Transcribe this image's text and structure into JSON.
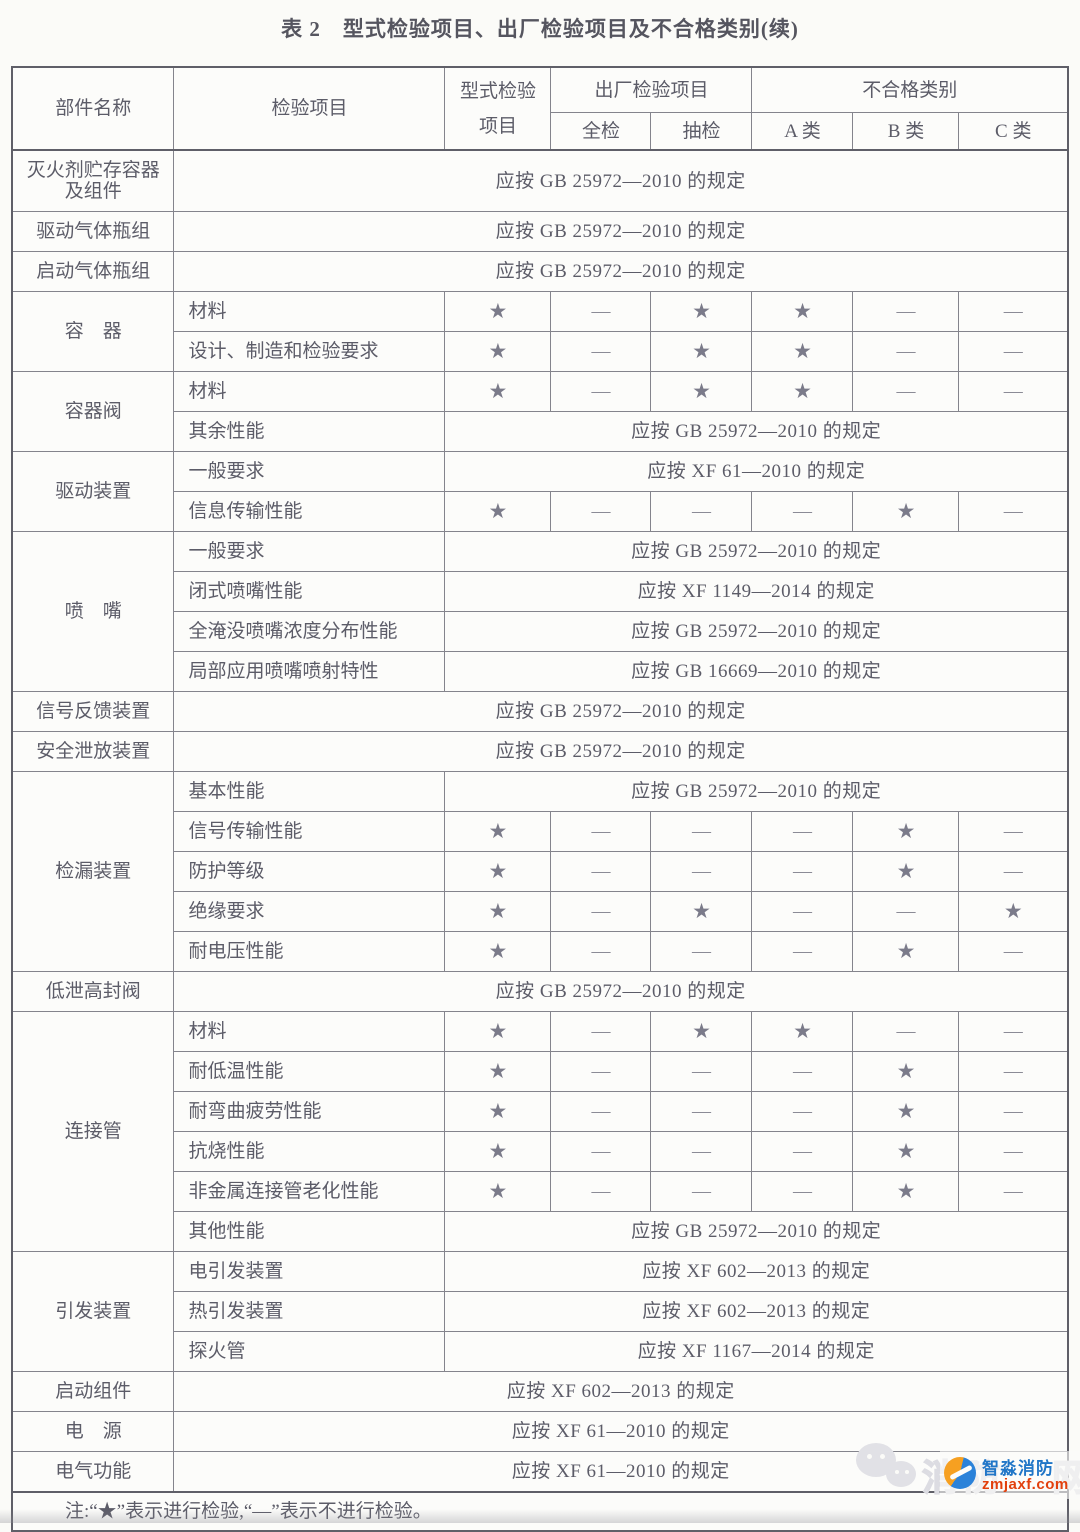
{
  "doc": {
    "title": "表 2　型式检验项目、出厂检验项目及不合格类别(续)",
    "note": "注:“★”表示进行检验,“—”表示不进行检验。"
  },
  "symbols": {
    "inspect": "★",
    "no_inspect": "—"
  },
  "table": {
    "header": {
      "component": "部件名称",
      "item": "检验项目",
      "type_line1": "型式检验",
      "type_line2": "项目",
      "factory": "出厂检验项目",
      "full_check": "全检",
      "sample_check": "抽检",
      "nonconforming": "不合格类别",
      "class_a": "A 类",
      "class_b": "B 类",
      "class_c": "C 类"
    },
    "groups": [
      {
        "name": "灭火剂贮存容器及组件",
        "rows": [
          {
            "type": "span_all",
            "text": "应按 GB 25972—2010 的规定"
          }
        ]
      },
      {
        "name": "驱动气体瓶组",
        "rows": [
          {
            "type": "span_all",
            "text": "应按 GB 25972—2010 的规定"
          }
        ]
      },
      {
        "name": "启动气体瓶组",
        "rows": [
          {
            "type": "span_all",
            "text": "应按 GB 25972—2010 的规定"
          }
        ]
      },
      {
        "name": "容　器",
        "rows": [
          {
            "type": "marks",
            "item": "材料",
            "marks": [
              "★",
              "—",
              "★",
              "★",
              "—",
              "—"
            ]
          },
          {
            "type": "marks",
            "item": "设计、制造和检验要求",
            "marks": [
              "★",
              "—",
              "★",
              "★",
              "—",
              "—"
            ]
          }
        ]
      },
      {
        "name": "容器阀",
        "rows": [
          {
            "type": "marks",
            "item": "材料",
            "marks": [
              "★",
              "—",
              "★",
              "★",
              "—",
              "—"
            ]
          },
          {
            "type": "span_item",
            "item": "其余性能",
            "text": "应按 GB 25972—2010 的规定"
          }
        ]
      },
      {
        "name": "驱动装置",
        "rows": [
          {
            "type": "span_item",
            "item": "一般要求",
            "text": "应按 XF 61—2010 的规定"
          },
          {
            "type": "marks",
            "item": "信息传输性能",
            "marks": [
              "★",
              "—",
              "—",
              "—",
              "★",
              "—"
            ]
          }
        ]
      },
      {
        "name": "喷　嘴",
        "rows": [
          {
            "type": "span_item",
            "item": "一般要求",
            "text": "应按 GB 25972—2010 的规定"
          },
          {
            "type": "span_item",
            "item": "闭式喷嘴性能",
            "text": "应按 XF 1149—2014 的规定"
          },
          {
            "type": "span_item",
            "item": "全淹没喷嘴浓度分布性能",
            "text": "应按 GB 25972—2010 的规定"
          },
          {
            "type": "span_item",
            "item": "局部应用喷嘴喷射特性",
            "text": "应按 GB 16669—2010 的规定"
          }
        ]
      },
      {
        "name": "信号反馈装置",
        "rows": [
          {
            "type": "span_all",
            "text": "应按 GB 25972—2010 的规定"
          }
        ]
      },
      {
        "name": "安全泄放装置",
        "rows": [
          {
            "type": "span_all",
            "text": "应按 GB 25972—2010 的规定"
          }
        ]
      },
      {
        "name": "检漏装置",
        "rows": [
          {
            "type": "span_item",
            "item": "基本性能",
            "text": "应按 GB 25972—2010 的规定"
          },
          {
            "type": "marks",
            "item": "信号传输性能",
            "marks": [
              "★",
              "—",
              "—",
              "—",
              "★",
              "—"
            ]
          },
          {
            "type": "marks",
            "item": "防护等级",
            "marks": [
              "★",
              "—",
              "—",
              "—",
              "★",
              "—"
            ]
          },
          {
            "type": "marks",
            "item": "绝缘要求",
            "marks": [
              "★",
              "—",
              "★",
              "—",
              "—",
              "★"
            ]
          },
          {
            "type": "marks",
            "item": "耐电压性能",
            "marks": [
              "★",
              "—",
              "—",
              "—",
              "★",
              "—"
            ]
          }
        ]
      },
      {
        "name": "低泄高封阀",
        "rows": [
          {
            "type": "span_all",
            "text": "应按 GB 25972—2010 的规定"
          }
        ]
      },
      {
        "name": "连接管",
        "rows": [
          {
            "type": "marks",
            "item": "材料",
            "marks": [
              "★",
              "—",
              "★",
              "★",
              "—",
              "—"
            ]
          },
          {
            "type": "marks",
            "item": "耐低温性能",
            "marks": [
              "★",
              "—",
              "—",
              "—",
              "★",
              "—"
            ]
          },
          {
            "type": "marks",
            "item": "耐弯曲疲劳性能",
            "marks": [
              "★",
              "—",
              "—",
              "—",
              "★",
              "—"
            ]
          },
          {
            "type": "marks",
            "item": "抗烧性能",
            "marks": [
              "★",
              "—",
              "—",
              "—",
              "★",
              "—"
            ]
          },
          {
            "type": "marks",
            "item": "非金属连接管老化性能",
            "marks": [
              "★",
              "—",
              "—",
              "—",
              "★",
              "—"
            ]
          },
          {
            "type": "span_item",
            "item": "其他性能",
            "text": "应按 GB 25972—2010 的规定"
          }
        ]
      },
      {
        "name": "引发装置",
        "rows": [
          {
            "type": "span_item",
            "item": "电引发装置",
            "text": "应按 XF 602—2013 的规定"
          },
          {
            "type": "span_item",
            "item": "热引发装置",
            "text": "应按 XF 602—2013 的规定"
          },
          {
            "type": "span_item",
            "item": "探火管",
            "text": "应按 XF 1167—2014 的规定"
          }
        ]
      },
      {
        "name": "启动组件",
        "rows": [
          {
            "type": "span_all",
            "text": "应按 XF 602—2013 的规定"
          }
        ]
      },
      {
        "name": "电　源",
        "rows": [
          {
            "type": "span_all",
            "text": "应按 XF 61—2010 的规定"
          }
        ]
      },
      {
        "name": "电气功能",
        "rows": [
          {
            "type": "span_all",
            "text": "应按 XF 61—2010 的规定"
          }
        ]
      }
    ]
  },
  "watermark": {
    "ghost_text": "消防",
    "ghost_text_partial": "网",
    "site_name": "智淼消防",
    "site_url": "zmjaxf.com",
    "colors": {
      "logo_blue": "#2176c7",
      "logo_orange": "#e2400d"
    }
  }
}
